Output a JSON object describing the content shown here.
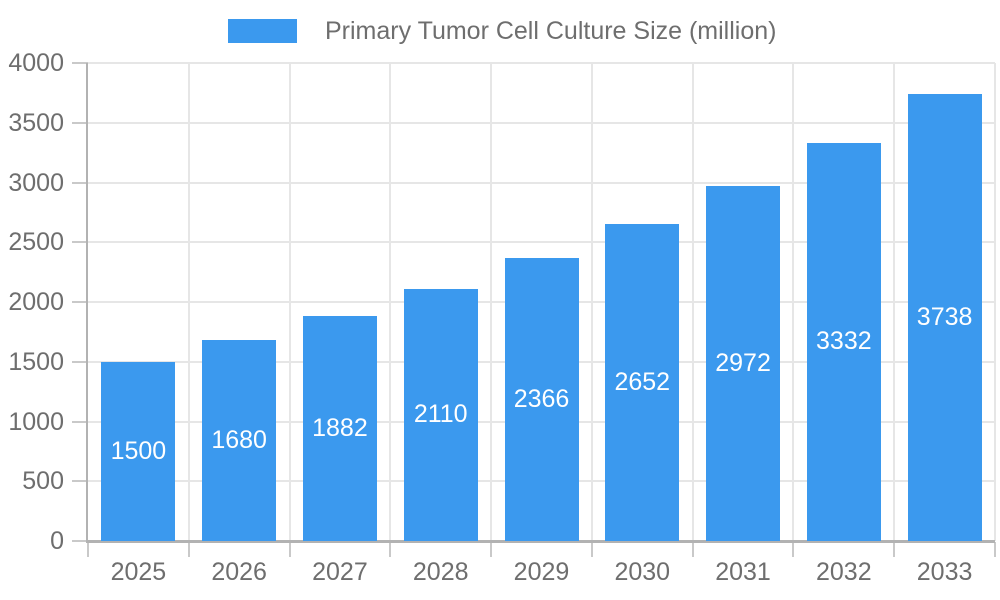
{
  "chart_data": {
    "type": "bar",
    "title": "Primary Tumor Cell Culture Size (million)",
    "categories": [
      "2025",
      "2026",
      "2027",
      "2028",
      "2029",
      "2030",
      "2031",
      "2032",
      "2033"
    ],
    "series": [
      {
        "name": "Primary Tumor Cell Culture Size (million)",
        "values": [
          1500,
          1680,
          1882,
          2110,
          2366,
          2652,
          2972,
          3332,
          3738
        ]
      }
    ],
    "bar_labels_shown": true,
    "xlabel": "",
    "ylabel": "",
    "ylim": [
      0,
      4000
    ],
    "ytick_step": 500,
    "ytick_labels": [
      "0",
      "500",
      "1000",
      "1500",
      "2000",
      "2500",
      "3000",
      "3500",
      "4000"
    ],
    "grid": true,
    "legend_position": "top",
    "colors": {
      "bar": "#3b99ee",
      "bar_value_text": "#ffffff",
      "axis_text": "#6e6e6e",
      "grid_line": "#e6e6e6",
      "axis_line": "#b2b2b2",
      "tick_mark": "#c9c9c9",
      "background": "#ffffff"
    }
  }
}
